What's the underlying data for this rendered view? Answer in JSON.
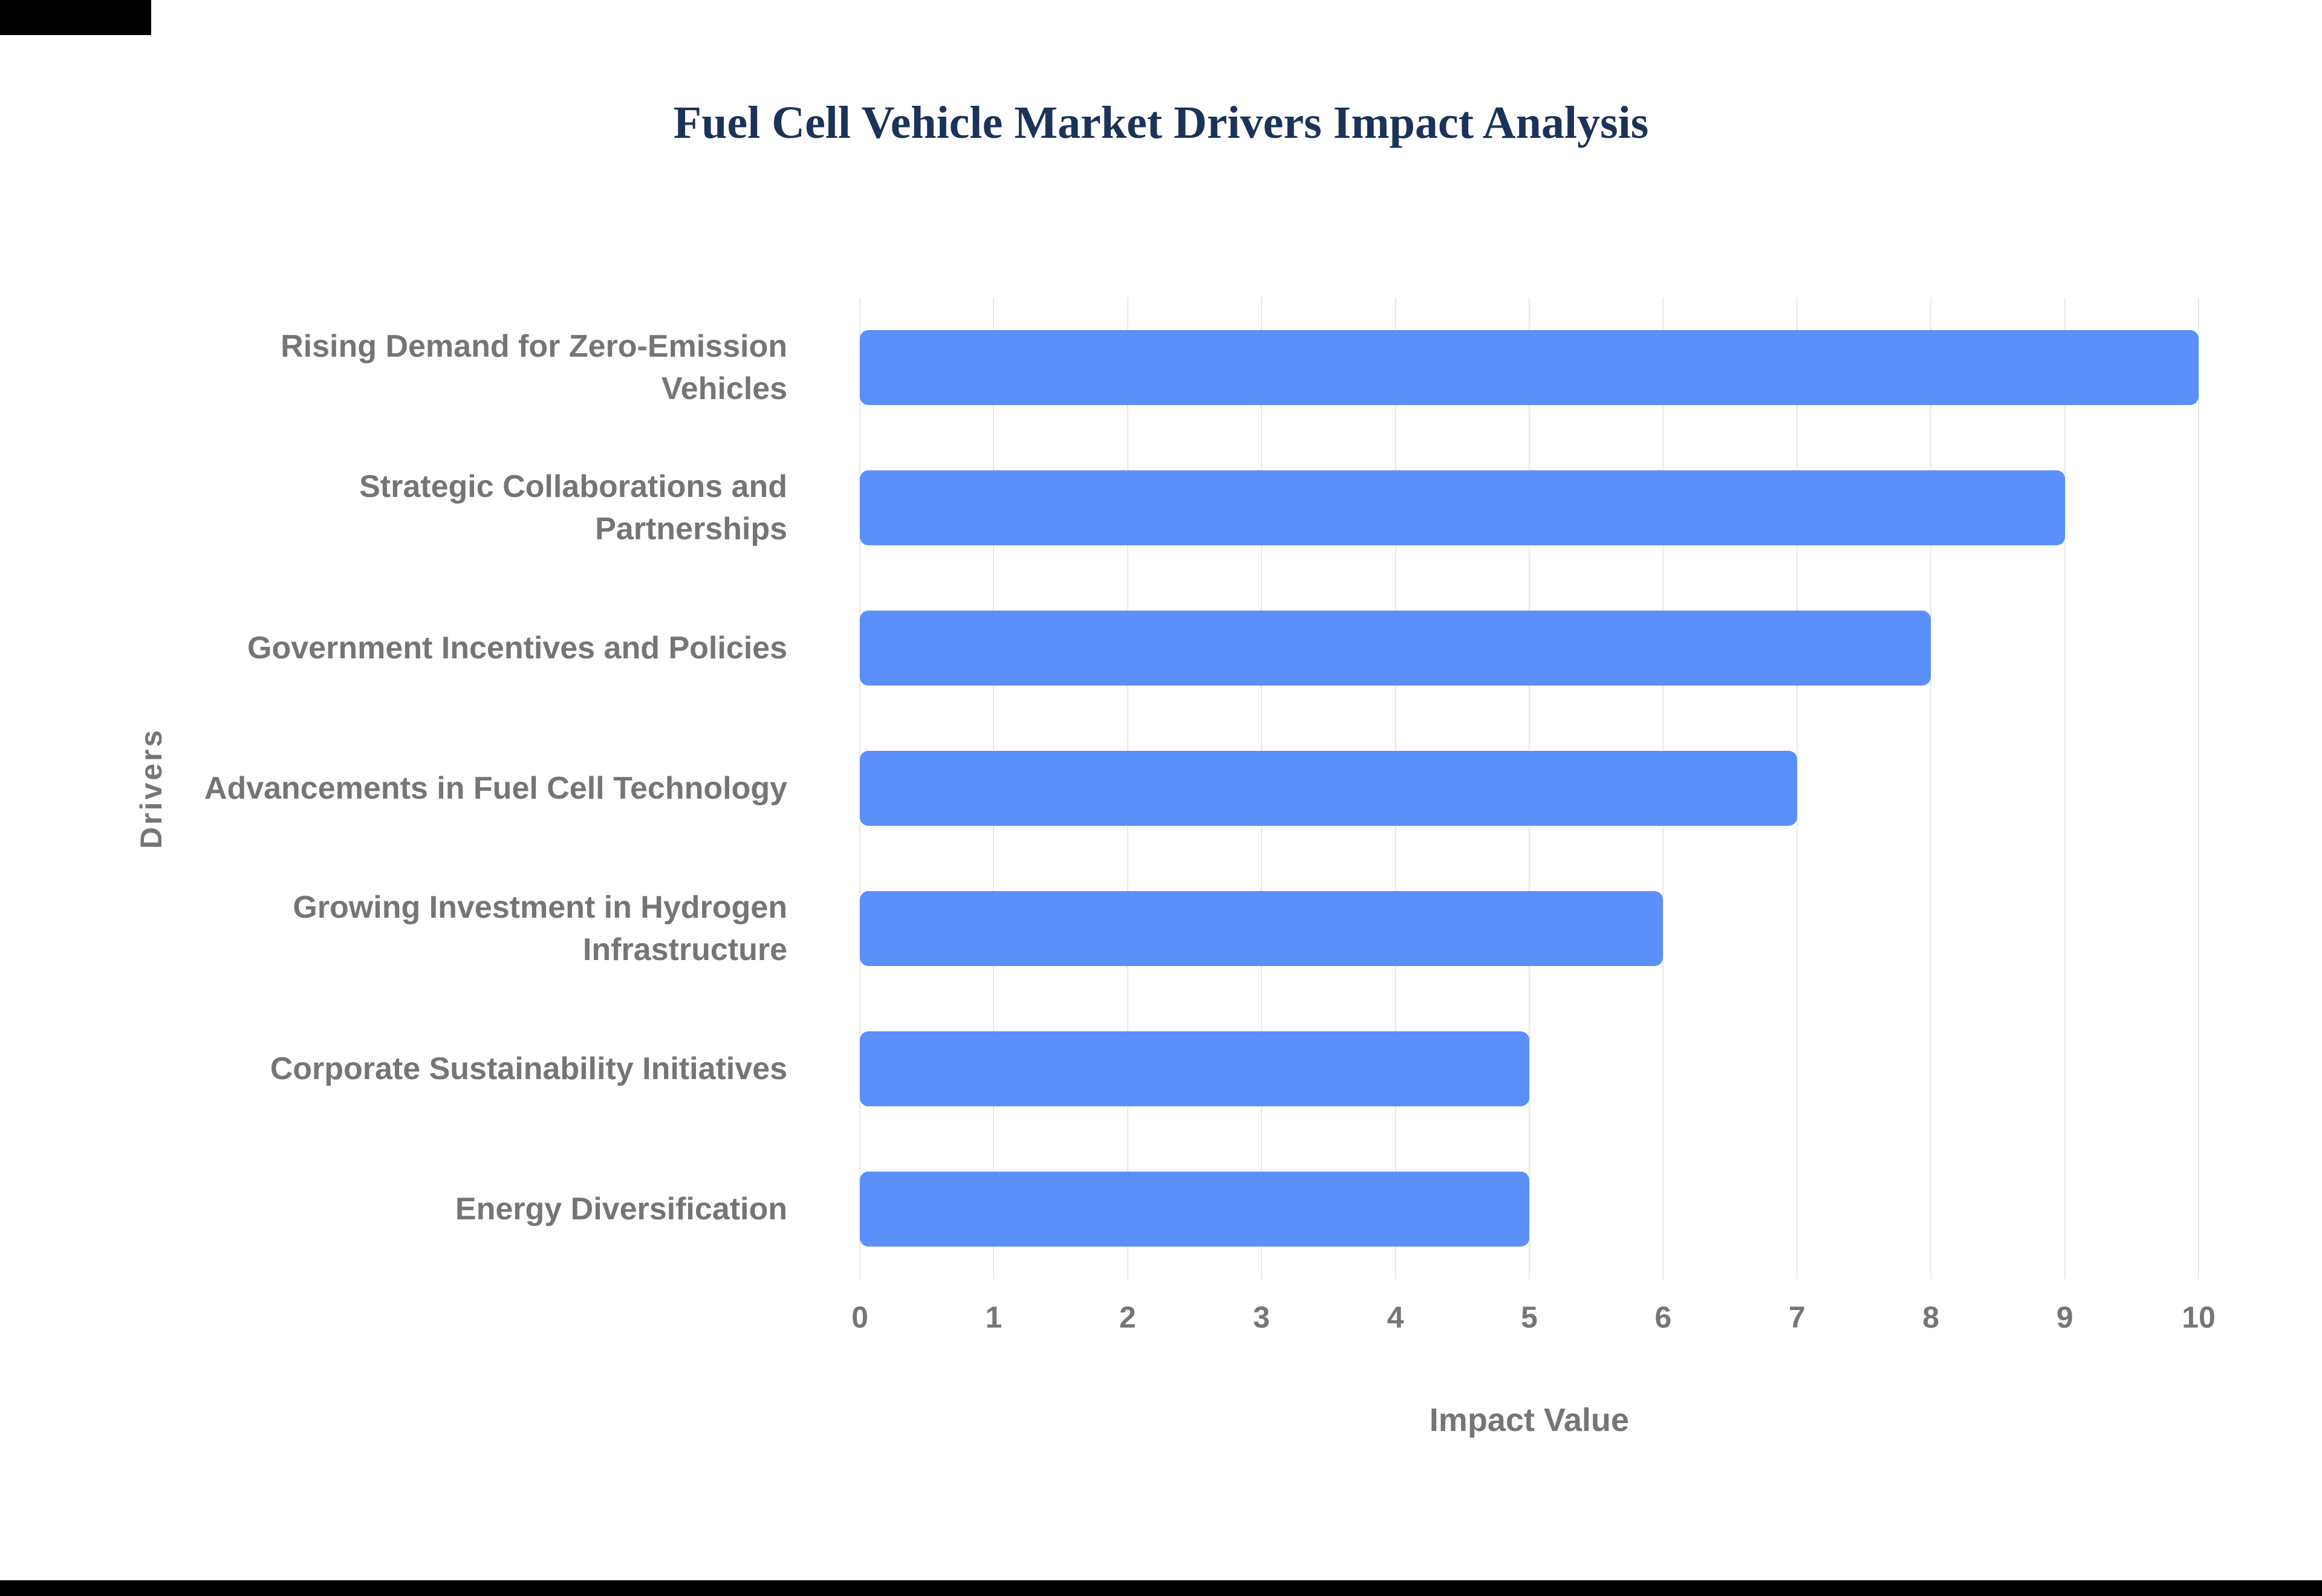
{
  "chart_data": {
    "type": "bar",
    "orientation": "horizontal",
    "title": "Fuel Cell Vehicle Market Drivers Impact Analysis",
    "categories": [
      "Rising Demand for Zero-Emission Vehicles",
      "Strategic Collaborations and Partnerships",
      "Government Incentives and Policies",
      "Advancements in Fuel Cell Technology",
      "Growing Investment in Hydrogen Infrastructure",
      "Corporate Sustainability Initiatives",
      "Energy Diversification"
    ],
    "values": [
      10,
      9,
      8,
      7,
      6,
      5,
      5
    ],
    "xlabel": "Impact Value",
    "ylabel": "Drivers",
    "xlim": [
      0,
      10
    ],
    "xticks": [
      0,
      1,
      2,
      3,
      4,
      5,
      6,
      7,
      8,
      9,
      10
    ],
    "grid": "vertical",
    "legend": "none",
    "colors": {
      "bar": "#5B8FF9",
      "title": "#1b3358",
      "axis_text": "#757575",
      "gridline": "#e7e7e7"
    }
  }
}
